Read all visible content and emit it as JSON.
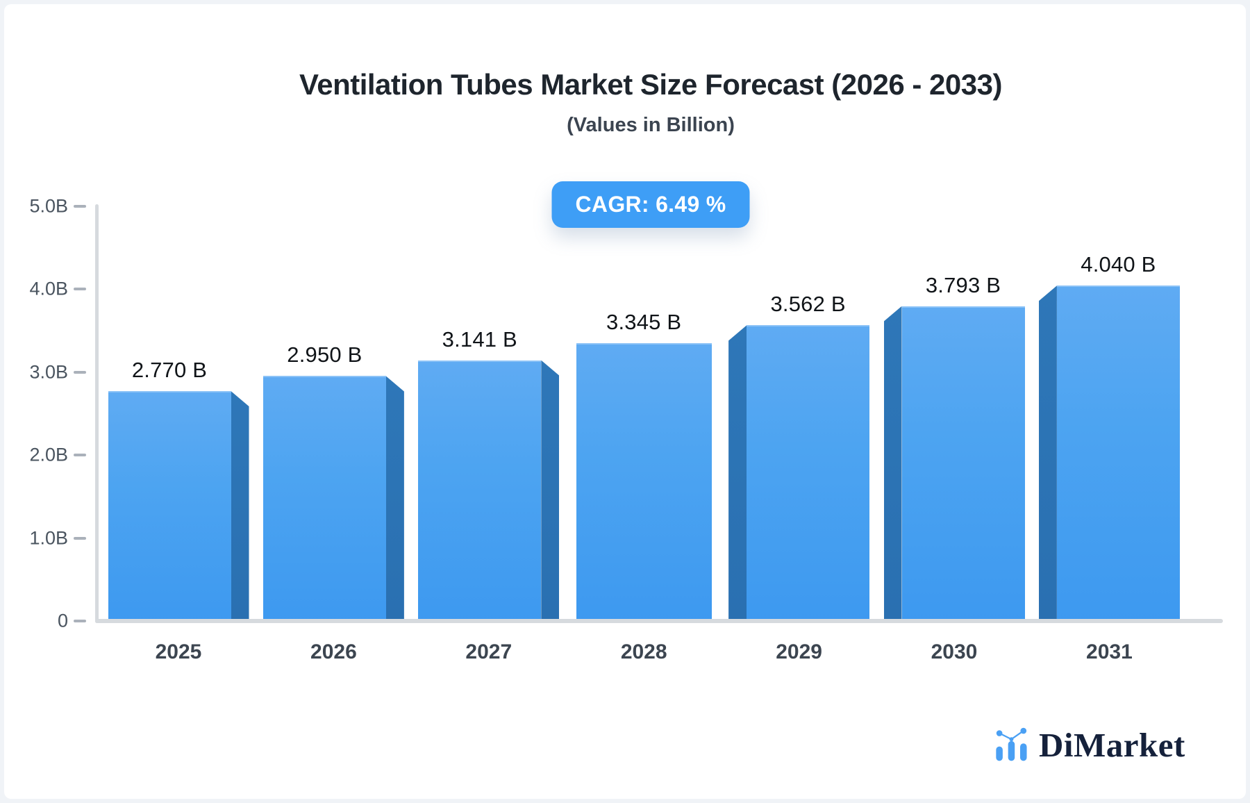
{
  "header": {
    "title": "Ventilation Tubes Market Size Forecast (2026 - 2033)",
    "subtitle": "(Values in Billion)"
  },
  "badge": {
    "label": "CAGR: 6.49 %"
  },
  "chart_data": {
    "type": "bar",
    "title": "Ventilation Tubes Market Size Forecast (2026 - 2033)",
    "subtitle": "(Values in Billion)",
    "categories": [
      "2025",
      "2026",
      "2027",
      "2028",
      "2029",
      "2030",
      "2031"
    ],
    "values": [
      2.77,
      2.95,
      3.141,
      3.345,
      3.562,
      3.793,
      4.04
    ],
    "value_labels": [
      "2.770 B",
      "2.950 B",
      "3.141 B",
      "3.345 B",
      "3.562 B",
      "3.793 B",
      "4.040 B"
    ],
    "xlabel": "",
    "ylabel": "",
    "ylim": [
      0,
      5
    ],
    "ytick_labels": [
      "5.0B",
      "4.0B",
      "3.0B",
      "2.0B",
      "1.0B",
      "0"
    ],
    "ytick_values": [
      5,
      4,
      3,
      2,
      1,
      0
    ],
    "grid": false,
    "legend": "none",
    "colors": {
      "bar_face_top": "#5fabf3",
      "bar_face_bottom": "#3d99f0",
      "bar_side": "#2b73b5",
      "axis": "#d6dade",
      "badge_background": "#3e9ef6",
      "value_label_text": "#101418",
      "logo_blue": "#4aa0f4",
      "logo_navy": "#15213b"
    }
  },
  "logo": {
    "icon": "bar-chart-logo-icon",
    "text": "DiMarket"
  }
}
